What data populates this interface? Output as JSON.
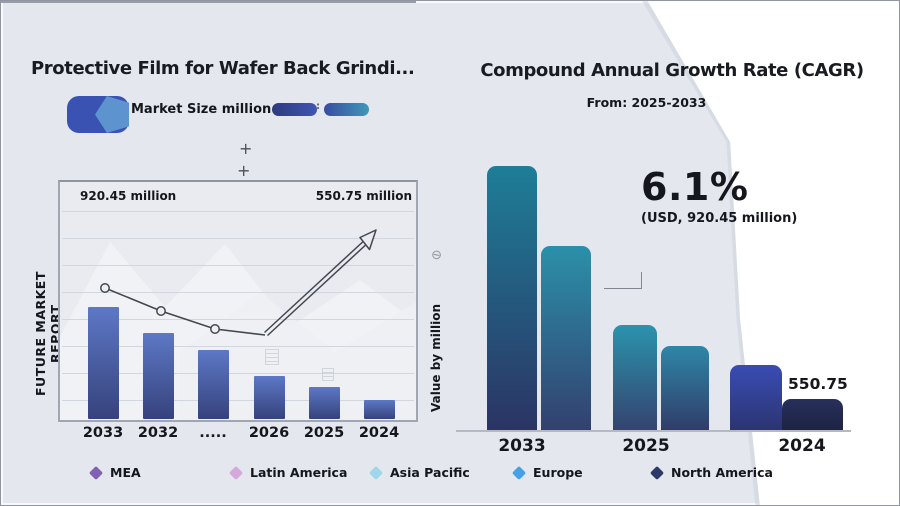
{
  "left_section": {
    "title": "Protective Film for Wafer Back Grindi...",
    "logo": {
      "label": "Market Size million",
      "ratio_separator": ":"
    },
    "plus_marks": [
      "+",
      "+"
    ],
    "panel": {
      "start_annotation": "920.45 million",
      "end_annotation": "550.75 million",
      "y_axis_label": "FUTURE MARKET REPORT",
      "value_axis_label": "Value by million"
    }
  },
  "right_section": {
    "title": "Compound Annual Growth Rate (CAGR)",
    "subtitle": "From: 2025-2033",
    "cagr_value": "6.1%",
    "cagr_detail": "(USD, 920.45 million)",
    "end_value_label": "550.75"
  },
  "icons": {
    "minus_circle": "⊖"
  },
  "legend": [
    {
      "label": "MEA",
      "color": "#8161b2"
    },
    {
      "label": "Latin America",
      "color": "#d4a8da"
    },
    {
      "label": "Asia Pacific",
      "color": "#9fd6ea"
    },
    {
      "label": "Europe",
      "color": "#45a0e6"
    },
    {
      "label": "North America",
      "color": "#2c3a68"
    }
  ],
  "chart_data": [
    {
      "type": "bar",
      "title": "Market Size million",
      "categories": [
        "2033",
        "2032",
        ".....",
        "2026",
        "2025",
        "2024"
      ],
      "values_relative": [
        100,
        77,
        62,
        38,
        29,
        17
      ],
      "unit": "relative bar height (axis unlabeled, values in million USD)",
      "annotations": [
        {
          "text": "920.45 million",
          "position": "top-left",
          "refers_to": "2033"
        },
        {
          "text": "550.75 million",
          "position": "top-right",
          "refers_to": "2024"
        }
      ],
      "bar_gradient": [
        "#5d78c6",
        "#36427c"
      ],
      "overlay_line": {
        "description": "declining line with 3 circle markers over first bars, then hollow double-stroke arrow rising to top-right",
        "markers": 3
      },
      "ylabel": "FUTURE MARKET REPORT",
      "ylabel_right": "Value by million",
      "grid": true,
      "legend_position": "none"
    },
    {
      "type": "bar",
      "title": "Compound Annual Growth Rate (CAGR) From: 2025-2033",
      "categories": [
        "2033",
        "2025",
        "2024"
      ],
      "series": [
        {
          "name": "primary",
          "values": [
            100,
            40,
            25
          ],
          "gradients": [
            [
              "#1e7e97",
              "#2b3464"
            ],
            [
              "#2b93ad",
              "#35426f"
            ],
            [
              "#3a4cb4",
              "#2b3470"
            ]
          ]
        },
        {
          "name": "secondary",
          "values": [
            70,
            32,
            12
          ],
          "gradients": [
            [
              "#2b90aa",
              "#33406e"
            ],
            [
              "#2f86a8",
              "#303c68"
            ],
            [
              "#282f5b",
              "#1c2342"
            ]
          ]
        }
      ],
      "unit": "relative bar height (values in million USD)",
      "annotations": [
        {
          "text": "6.1%",
          "role": "cagr"
        },
        {
          "text": "(USD, 920.45 million)",
          "role": "cagr-detail"
        },
        {
          "text": "550.75",
          "near": "2024"
        }
      ],
      "grid": false,
      "legend_position": "bottom"
    }
  ]
}
